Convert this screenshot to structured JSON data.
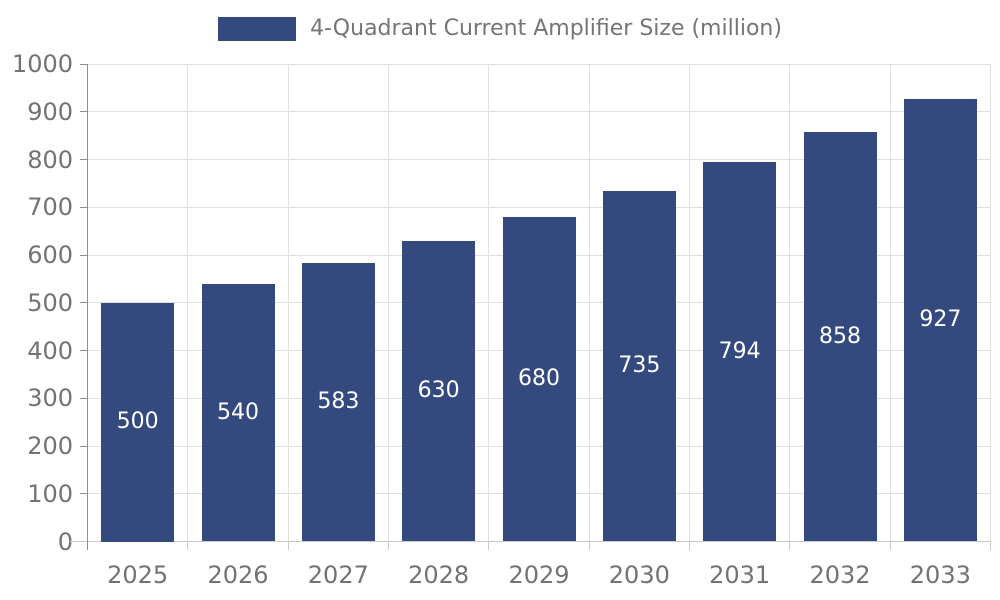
{
  "legend": {
    "label": "4-Quadrant Current Amplifier Size (million)"
  },
  "colors": {
    "bar": "#344a7f",
    "grid": "#e0e0e0",
    "y_axis_line": "#8f8f8f",
    "x_axis_line": "#c9c9cc",
    "axis_text": "#737373",
    "legend_text": "#757575",
    "bar_value_text": "#ffffff",
    "background": "#ffffff"
  },
  "chart_data": {
    "type": "bar",
    "title": "4-Quadrant Current Amplifier Size (million)",
    "categories": [
      "2025",
      "2026",
      "2027",
      "2028",
      "2029",
      "2030",
      "2031",
      "2032",
      "2033"
    ],
    "values": [
      500,
      540,
      583,
      630,
      680,
      735,
      794,
      858,
      927
    ],
    "series_name": "4-Quadrant Current Amplifier Size (million)",
    "xlabel": "",
    "ylabel": "",
    "ylim": [
      0,
      1000
    ],
    "ytick_step": 100,
    "ytick_labels": [
      "0",
      "100",
      "200",
      "300",
      "400",
      "500",
      "600",
      "700",
      "800",
      "900",
      "1000"
    ],
    "value_labels_shown": true,
    "legend_position": "top",
    "grid": true
  }
}
